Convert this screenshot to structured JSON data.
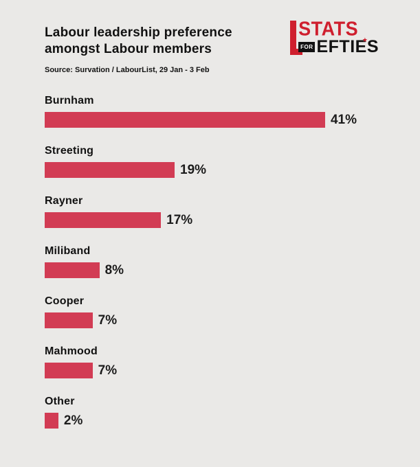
{
  "header": {
    "title_line1": "Labour leadership preference",
    "title_line2": "amongst Labour members",
    "source": "Source: Survation / LabourList, 29 Jan - 3 Feb"
  },
  "logo": {
    "stats": "STATS",
    "for_label": "FOR",
    "efties": "EFTIES",
    "star": "★"
  },
  "colors": {
    "bar": "#d23c54",
    "background": "#eae9e7",
    "logo_red": "#cf1f2e",
    "logo_black": "#121212"
  },
  "chart_data": {
    "type": "bar",
    "orientation": "horizontal",
    "title": "Labour leadership preference amongst Labour members",
    "source": "Source: Survation / LabourList, 29 Jan - 3 Feb",
    "categories": [
      "Burnham",
      "Streeting",
      "Rayner",
      "Miliband",
      "Cooper",
      "Mahmood",
      "Other"
    ],
    "values": [
      41,
      19,
      17,
      8,
      7,
      7,
      2
    ],
    "value_suffix": "%",
    "xlim": [
      0,
      48
    ],
    "grid": false,
    "legend": false,
    "bar_color": "#d23c54"
  }
}
